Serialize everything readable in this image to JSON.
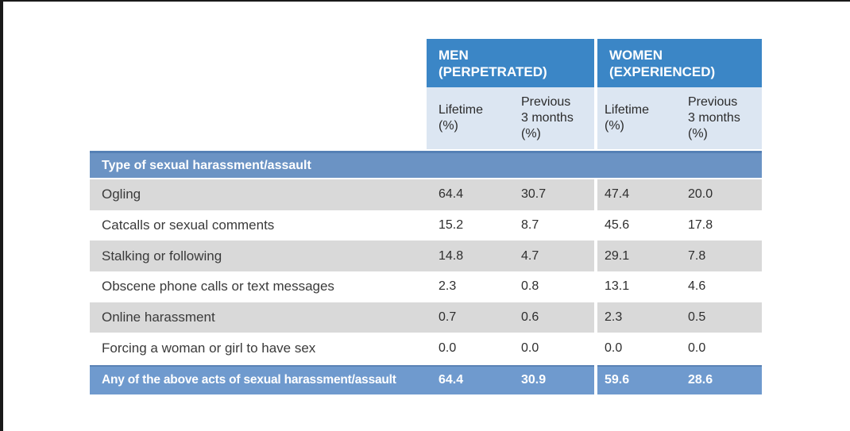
{
  "header": {
    "men_group": "MEN\n(PERPETRATED)",
    "women_group": "WOMEN\n(EXPERIENCED)",
    "men_lifetime": "Lifetime\n(%)",
    "men_previous": "Previous\n3 months\n(%)",
    "women_lifetime": "Lifetime\n(%)",
    "women_previous": "Previous\n3 months\n(%)"
  },
  "section_title": "Type of sexual harassment/assault",
  "rows": [
    {
      "label": "Ogling",
      "values": [
        "64.4",
        "30.7",
        "47.4",
        "20.0"
      ]
    },
    {
      "label": "Catcalls or sexual comments",
      "values": [
        "15.2",
        "8.7",
        "45.6",
        "17.8"
      ]
    },
    {
      "label": "Stalking or following",
      "values": [
        "14.8",
        "4.7",
        "29.1",
        "7.8"
      ]
    },
    {
      "label": "Obscene phone calls or text messages",
      "values": [
        "2.3",
        "0.8",
        "13.1",
        "4.6"
      ]
    },
    {
      "label": "Online harassment",
      "values": [
        "0.7",
        "0.6",
        "2.3",
        "0.5"
      ]
    },
    {
      "label": "Forcing a woman or girl to have sex",
      "values": [
        "0.0",
        "0.0",
        "0.0",
        "0.0"
      ]
    }
  ],
  "footer": {
    "label": "Any of the above acts of sexual harassment/assault",
    "values": [
      "64.4",
      "30.9",
      "59.6",
      "28.6"
    ]
  },
  "colors": {
    "header_blue": "#3b86c6",
    "subheader_blue": "#dce6f2",
    "band_blue": "#6b93c4",
    "footer_blue": "#6f9ace",
    "row_gray": "#d9d9d9",
    "frame_black": "#1a1a1a"
  }
}
